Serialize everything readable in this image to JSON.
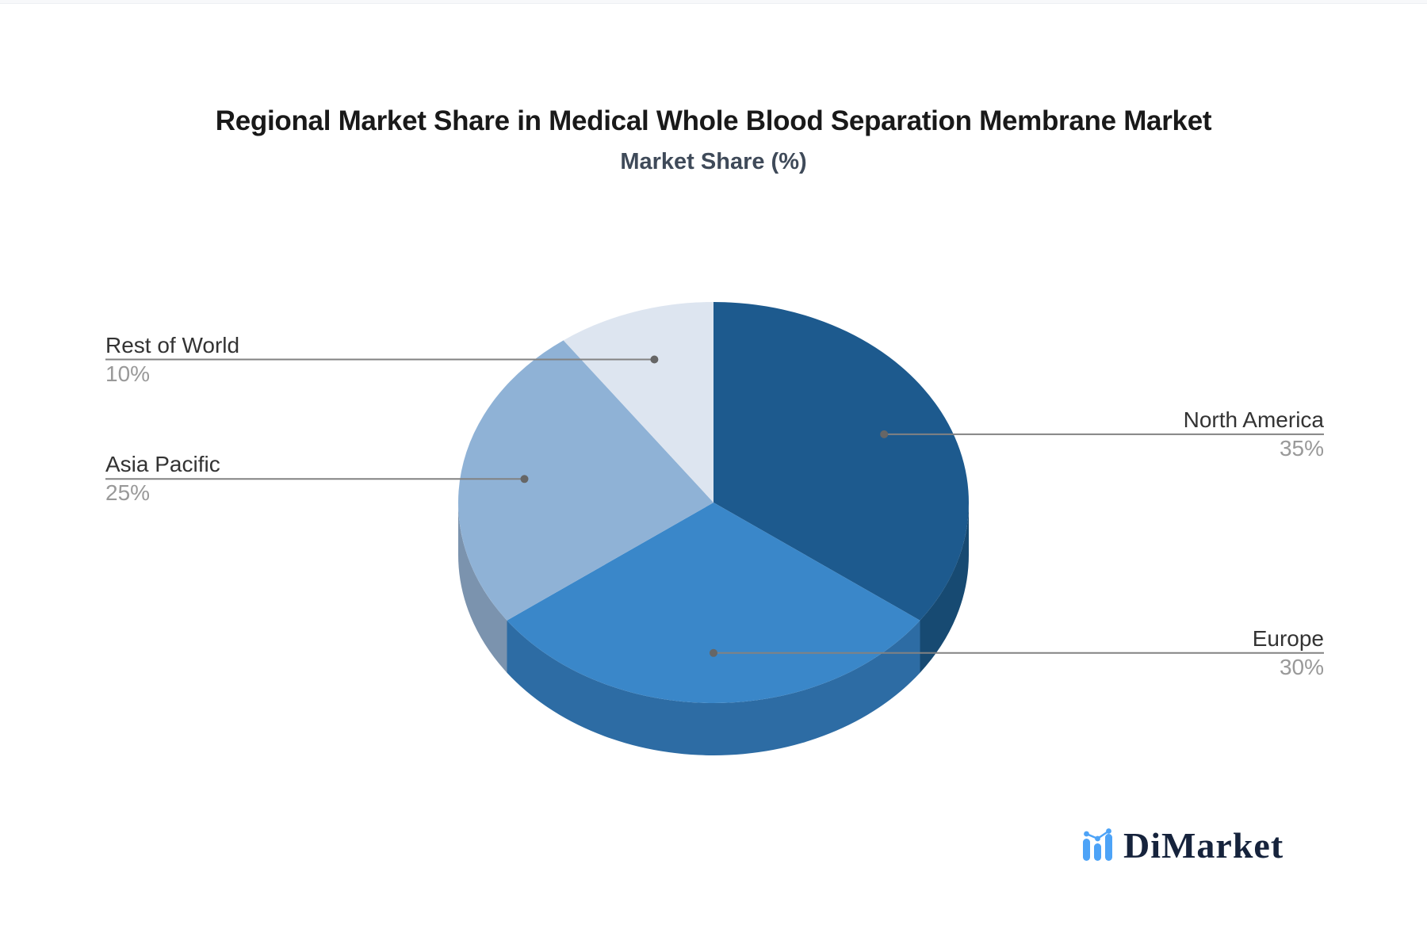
{
  "chart_data": {
    "type": "pie",
    "title": "Regional Market Share in Medical Whole Blood Separation Membrane Market",
    "subtitle": "Market Share (%)",
    "unit": "%",
    "effect": "3d",
    "start_angle_deg": 90,
    "direction": "clockwise",
    "legend_position": "none",
    "label_style": "callout leader lines with dots, name above line, percent below",
    "slices": [
      {
        "label": "North America",
        "value": 35,
        "pct_label": "35%",
        "color": "#1d5a8e",
        "rim_color": "#174a72"
      },
      {
        "label": "Europe",
        "value": 30,
        "pct_label": "30%",
        "color": "#3a87c9",
        "rim_color": "#2d6ca4"
      },
      {
        "label": "Asia Pacific",
        "value": 25,
        "pct_label": "25%",
        "color": "#8fb2d6",
        "rim_color": "#7b93ae"
      },
      {
        "label": "Rest of World",
        "value": 10,
        "pct_label": "10%",
        "color": "#dde5f0",
        "rim_color": "#b9c4d4"
      }
    ]
  },
  "leader": {
    "line_color": "#828282",
    "dot_color": "#666666"
  },
  "logo": {
    "text": "DiMarket",
    "icon": "bar-chart-logo-icon",
    "icon_color": "#4da3f7",
    "text_color": "#16233c"
  }
}
